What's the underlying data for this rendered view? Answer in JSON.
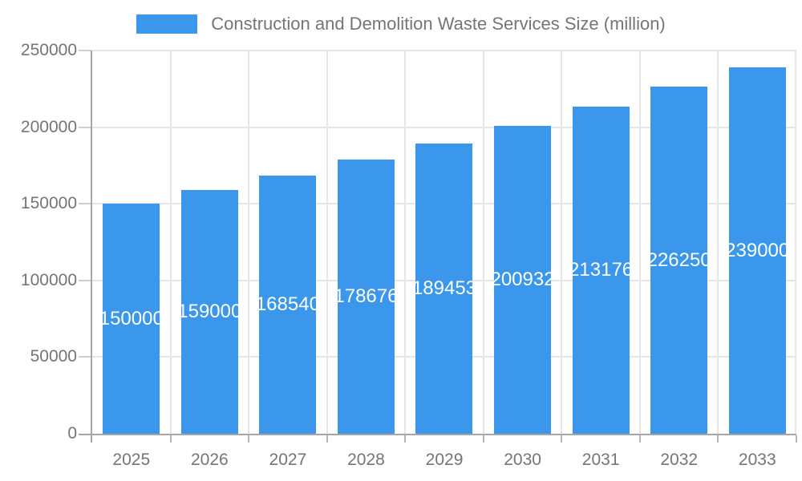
{
  "chart_data": {
    "type": "bar",
    "title": "Construction and Demolition Waste Services Size (million)",
    "legend_position": "top",
    "categories": [
      "2025",
      "2026",
      "2027",
      "2028",
      "2029",
      "2030",
      "2031",
      "2032",
      "2033"
    ],
    "values": [
      150000,
      159000,
      168540,
      178676,
      189453,
      200932,
      213176,
      226250,
      239000
    ],
    "value_labels": [
      "150000",
      "159000",
      "168540",
      "178676",
      "189453",
      "200932",
      "213176",
      "226250",
      "239000"
    ],
    "xlabel": "",
    "ylabel": "",
    "ylim": [
      0,
      250000
    ],
    "ytick_labels": [
      "0",
      "50000",
      "100000",
      "150000",
      "200000",
      "250000"
    ],
    "grid": true,
    "colors": {
      "bar": "#3A97EB",
      "value_label": "#FFFFFF",
      "axis_text": "#757575",
      "gridline": "#E6E6E6",
      "axis_line": "#A6A6A6",
      "background": "#FFFFFF"
    }
  }
}
